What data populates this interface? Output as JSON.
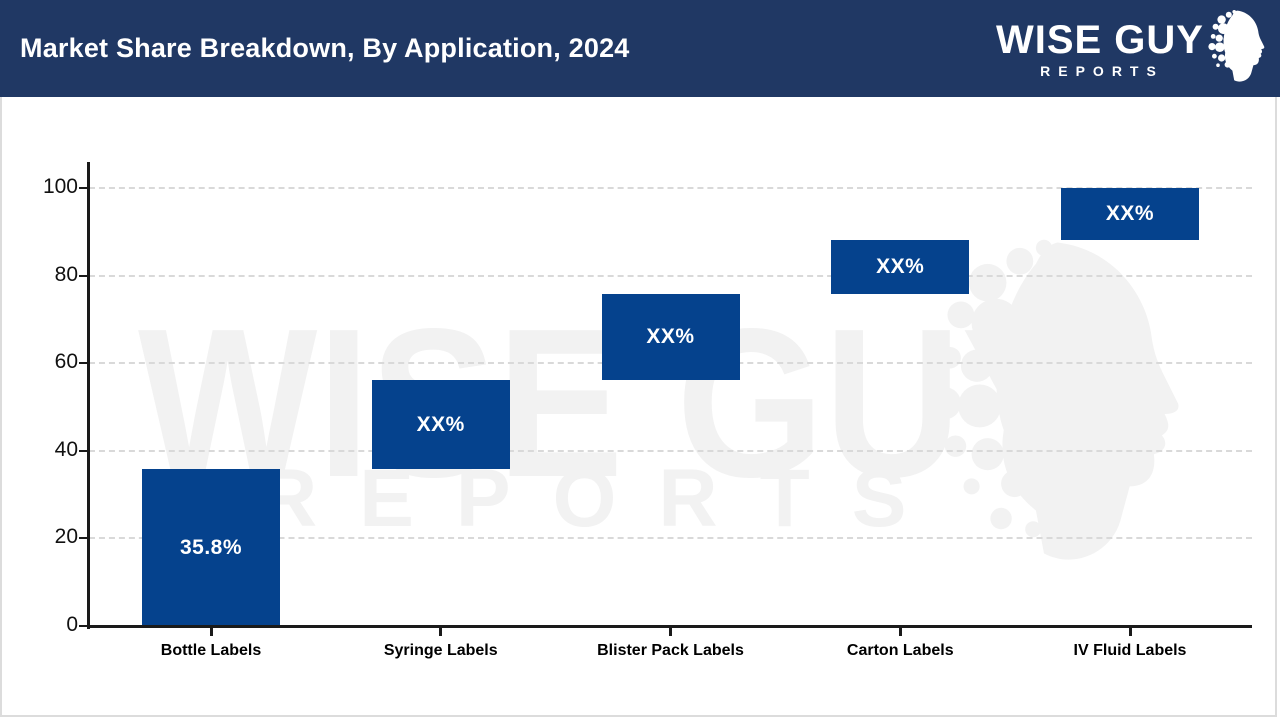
{
  "header": {
    "title": "Market Share Breakdown, By Application, 2024",
    "logo": {
      "wordmark": "WISE GUY",
      "subtext": "REPORTS",
      "face_icon": "dotted-head-profile"
    }
  },
  "watermark": {
    "line1": "WISE GUY",
    "line2": "REPORTS",
    "face_icon": "dotted-head-profile"
  },
  "chart_data": {
    "type": "bar",
    "subtype": "waterfall",
    "title": "Market Share Breakdown, By Application, 2024",
    "categories": [
      "Bottle Labels",
      "Syringe Labels",
      "Blister Pack Labels",
      "Carton Labels",
      "IV Fluid Labels"
    ],
    "series": [
      {
        "name": "Market share (%)",
        "segments": [
          {
            "category": "Bottle Labels",
            "start": 0,
            "end": 35.8,
            "value": 35.8,
            "label": "35.8%"
          },
          {
            "category": "Syringe Labels",
            "start": 35.8,
            "end": 56.2,
            "value": 20.4,
            "label": "XX%"
          },
          {
            "category": "Blister Pack Labels",
            "start": 56.2,
            "end": 75.9,
            "value": 19.7,
            "label": "XX%"
          },
          {
            "category": "Carton Labels",
            "start": 75.9,
            "end": 88.2,
            "value": 12.3,
            "label": "XX%"
          },
          {
            "category": "IV Fluid Labels",
            "start": 88.2,
            "end": 100,
            "value": 11.8,
            "label": "XX%"
          }
        ]
      }
    ],
    "xlabel": "",
    "ylabel": "",
    "yticks": [
      0,
      20,
      40,
      60,
      80,
      100
    ],
    "ylim": [
      0,
      106
    ],
    "grid": "horizontal-dashed",
    "legend": "none",
    "colors": {
      "bar": "#05428D",
      "bar_label": "#ffffff",
      "axis": "#1a1a1a",
      "gridline": "#d9d9d9",
      "header_bg": "#203864",
      "tick_text": "#111111",
      "watermark": "#f2f2f2"
    }
  }
}
